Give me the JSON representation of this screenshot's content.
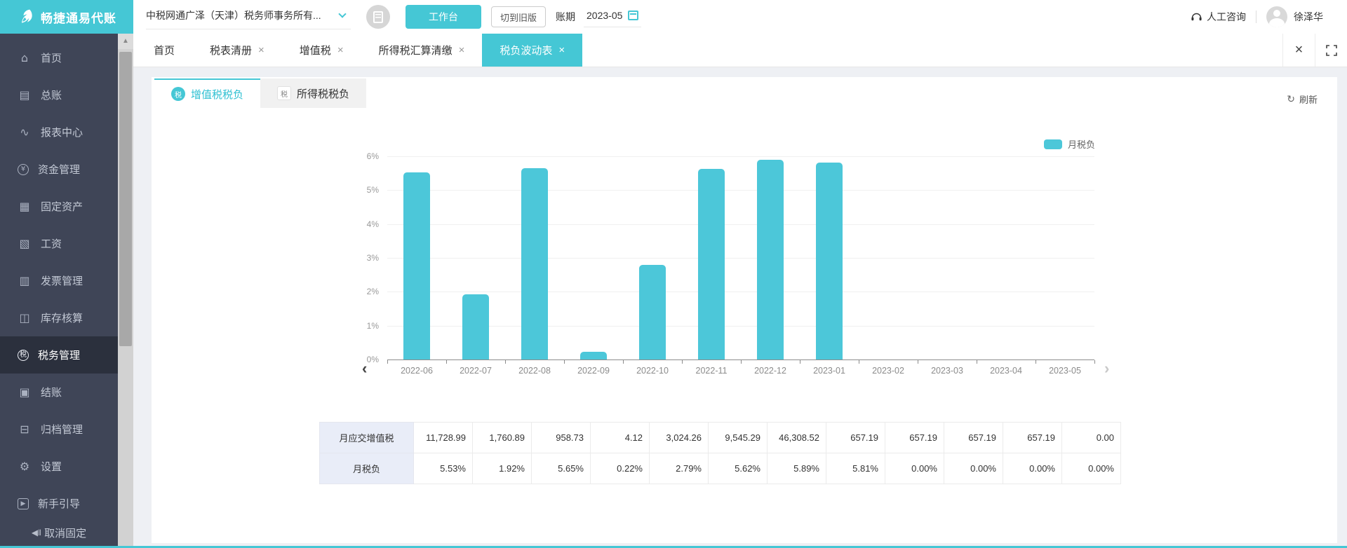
{
  "brand": {
    "name": "畅捷通易代账",
    "accent_color": "#45c7d5"
  },
  "header": {
    "company": "中税网通广泽（天津）税务师事务所有...",
    "workbench_btn": "工作台",
    "switch_old_btn": "切到旧版",
    "period_label": "账期",
    "period_value": "2023-05",
    "support": "人工咨询",
    "user": "徐泽华"
  },
  "tabs": [
    {
      "label": "首页",
      "closable": false,
      "active": false
    },
    {
      "label": "税表清册",
      "closable": true,
      "active": false
    },
    {
      "label": "增值税",
      "closable": true,
      "active": false
    },
    {
      "label": "所得税汇算清缴",
      "closable": true,
      "active": false
    },
    {
      "label": "税负波动表",
      "closable": true,
      "active": true
    }
  ],
  "sidebar": {
    "items": [
      {
        "id": "home",
        "label": "首页",
        "icon": "home-icon",
        "active": false
      },
      {
        "id": "general-ledger",
        "label": "总账",
        "icon": "ledger-icon",
        "active": false
      },
      {
        "id": "report-center",
        "label": "报表中心",
        "icon": "reports-icon",
        "active": false
      },
      {
        "id": "funds",
        "label": "资金管理",
        "icon": "funds-icon",
        "active": false
      },
      {
        "id": "fixed-assets",
        "label": "固定资产",
        "icon": "fixed-assets-icon",
        "active": false
      },
      {
        "id": "payroll",
        "label": "工资",
        "icon": "payroll-icon",
        "active": false
      },
      {
        "id": "invoice",
        "label": "发票管理",
        "icon": "invoice-icon",
        "active": false
      },
      {
        "id": "inventory",
        "label": "库存核算",
        "icon": "inventory-icon",
        "active": false
      },
      {
        "id": "tax",
        "label": "税务管理",
        "icon": "tax-icon",
        "active": true
      },
      {
        "id": "closing",
        "label": "结账",
        "icon": "closing-icon",
        "active": false
      },
      {
        "id": "archive",
        "label": "归档管理",
        "icon": "archive-icon",
        "active": false
      },
      {
        "id": "settings",
        "label": "设置",
        "icon": "settings-icon",
        "active": false
      },
      {
        "id": "guide",
        "label": "新手引导",
        "icon": "guide-icon",
        "active": false
      }
    ],
    "unpin": "取消固定"
  },
  "content": {
    "subtabs": [
      {
        "label": "增值税税负",
        "active": true
      },
      {
        "label": "所得税税负",
        "active": false
      }
    ],
    "refresh": "刷新"
  },
  "chart_data": {
    "type": "bar",
    "title": "",
    "categories": [
      "2022-06",
      "2022-07",
      "2022-08",
      "2022-09",
      "2022-10",
      "2022-11",
      "2022-12",
      "2023-01",
      "2023-02",
      "2023-03",
      "2023-04",
      "2023-05"
    ],
    "series": [
      {
        "name": "月税负",
        "values": [
          5.53,
          1.92,
          5.65,
          0.22,
          2.79,
          5.62,
          5.89,
          5.81,
          0.0,
          0.0,
          0.0,
          0.0
        ]
      }
    ],
    "unit": "%",
    "yticks": [
      "0%",
      "1%",
      "2%",
      "3%",
      "4%",
      "5%",
      "6%"
    ],
    "ylim": [
      0,
      6
    ],
    "grid": true,
    "legend_position": "top-right",
    "bar_color": "#4cc7d9"
  },
  "table": {
    "rows": [
      {
        "header": "月应交增值税",
        "values": [
          "11,728.99",
          "1,760.89",
          "958.73",
          "4.12",
          "3,024.26",
          "9,545.29",
          "46,308.52",
          "657.19",
          "657.19",
          "657.19",
          "657.19",
          "0.00"
        ]
      },
      {
        "header": "月税负",
        "values": [
          "5.53%",
          "1.92%",
          "5.65%",
          "0.22%",
          "2.79%",
          "5.62%",
          "5.89%",
          "5.81%",
          "0.00%",
          "0.00%",
          "0.00%",
          "0.00%"
        ]
      }
    ]
  }
}
